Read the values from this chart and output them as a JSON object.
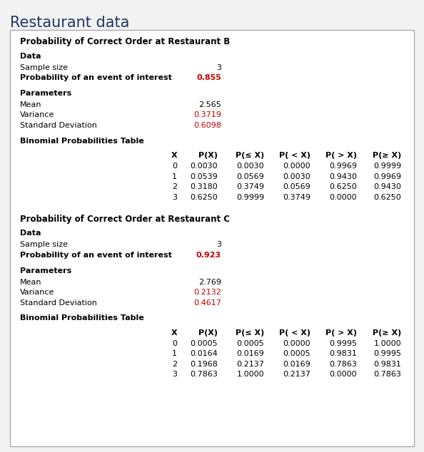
{
  "title": "Restaurant data",
  "bg_color": "#f2f2f2",
  "box_bg": "#ffffff",
  "box_border": "#aaaaaa",
  "title_color": "#1f3864",
  "label_color": "#000000",
  "value_color_red": "#c00000",
  "sections": [
    {
      "header": "Probability of Correct Order at Restaurant B",
      "sample_size": "3",
      "prob_interest": "0.855",
      "mean": "2.565",
      "variance": "0.3719",
      "std_dev": "0.6098",
      "table_header": [
        "X",
        "P(X)",
        "P(≤ X)",
        "P( < X)",
        "P( > X)",
        "P(≥ X)"
      ],
      "table_data": [
        [
          "0",
          "0.0030",
          "0.0030",
          "0.0000",
          "0.9969",
          "0.9999"
        ],
        [
          "1",
          "0.0539",
          "0.0569",
          "0.0030",
          "0.9430",
          "0.9969"
        ],
        [
          "2",
          "0.3180",
          "0.3749",
          "0.0569",
          "0.6250",
          "0.9430"
        ],
        [
          "3",
          "0.6250",
          "0.9999",
          "0.3749",
          "0.0000",
          "0.6250"
        ]
      ]
    },
    {
      "header": "Probability of Correct Order at Restaurant C",
      "sample_size": "3",
      "prob_interest": "0.923",
      "mean": "2.769",
      "variance": "0.2132",
      "std_dev": "0.4617",
      "table_header": [
        "X",
        "P(X)",
        "P(≤ X)",
        "P( < X)",
        "P( > X)",
        "P(≥ X)"
      ],
      "table_data": [
        [
          "0",
          "0.0005",
          "0.0005",
          "0.0000",
          "0.9995",
          "1.0000"
        ],
        [
          "1",
          "0.0164",
          "0.0169",
          "0.0005",
          "0.9831",
          "0.9995"
        ],
        [
          "2",
          "0.1968",
          "0.2137",
          "0.0169",
          "0.7863",
          "0.9831"
        ],
        [
          "3",
          "0.7863",
          "1.0000",
          "0.2137",
          "0.0000",
          "0.7863"
        ]
      ]
    }
  ]
}
